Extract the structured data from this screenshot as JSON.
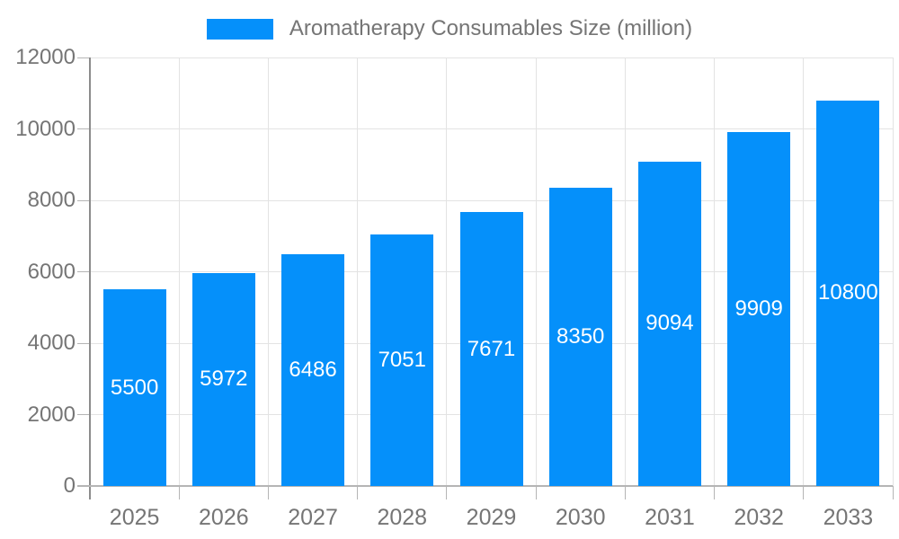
{
  "legend": {
    "label": "Aromatherapy Consumables Size (million)"
  },
  "colors": {
    "bar": "#0590fa",
    "grid": "#e3e3e3",
    "y_axis_line": "#8c8c8c",
    "x_axis_line": "#b5b5b5",
    "axis_text": "#757575",
    "value_label_text": "#ffffff",
    "background": "#ffffff"
  },
  "chart_data": {
    "type": "bar",
    "title": "Aromatherapy Consumables Size (million)",
    "categories": [
      "2025",
      "2026",
      "2027",
      "2028",
      "2029",
      "2030",
      "2031",
      "2032",
      "2033"
    ],
    "values": [
      5500,
      5972,
      6486,
      7051,
      7671,
      8350,
      9094,
      9909,
      10800
    ],
    "series": [
      {
        "name": "Aromatherapy Consumables Size (million)",
        "values": [
          5500,
          5972,
          6486,
          7051,
          7671,
          8350,
          9094,
          9909,
          10800
        ]
      }
    ],
    "xlabel": "",
    "ylabel": "",
    "ylim": [
      0,
      12000
    ],
    "y_ticks": [
      0,
      2000,
      4000,
      6000,
      8000,
      10000,
      12000
    ],
    "grid": true,
    "legend_position": "top-center",
    "value_labels": "inside-middle-white"
  }
}
